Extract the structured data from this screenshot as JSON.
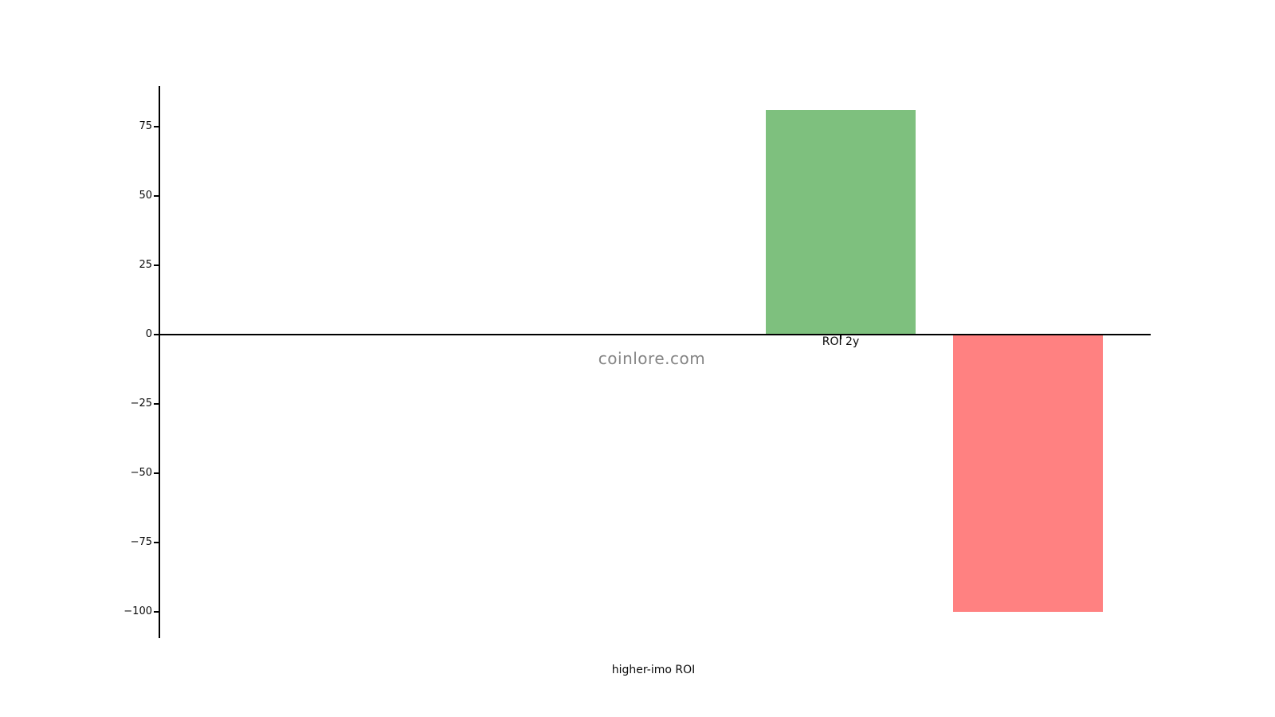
{
  "chart_data": {
    "type": "bar",
    "title": "",
    "xlabel": "higher-imo ROI",
    "ylabel": "",
    "watermark": "coinlore.com",
    "categories": [
      "ROI 2y",
      ""
    ],
    "values": [
      81,
      -100
    ],
    "bar_colors": [
      "#7ec07e",
      "#ff8181"
    ],
    "y_ticks": [
      75,
      50,
      25,
      0,
      -25,
      -50,
      -75,
      -100
    ],
    "y_tick_labels": [
      "75",
      "50",
      "25",
      "0",
      "−25",
      "−50",
      "−75",
      "−100"
    ],
    "ylim": [
      -109,
      90
    ],
    "grid": false,
    "legend_position": "none",
    "axis_color": "#000000",
    "tick_label_color": "#0a0a0a",
    "watermark_color": "#858585",
    "background_color": "#ffffff"
  }
}
